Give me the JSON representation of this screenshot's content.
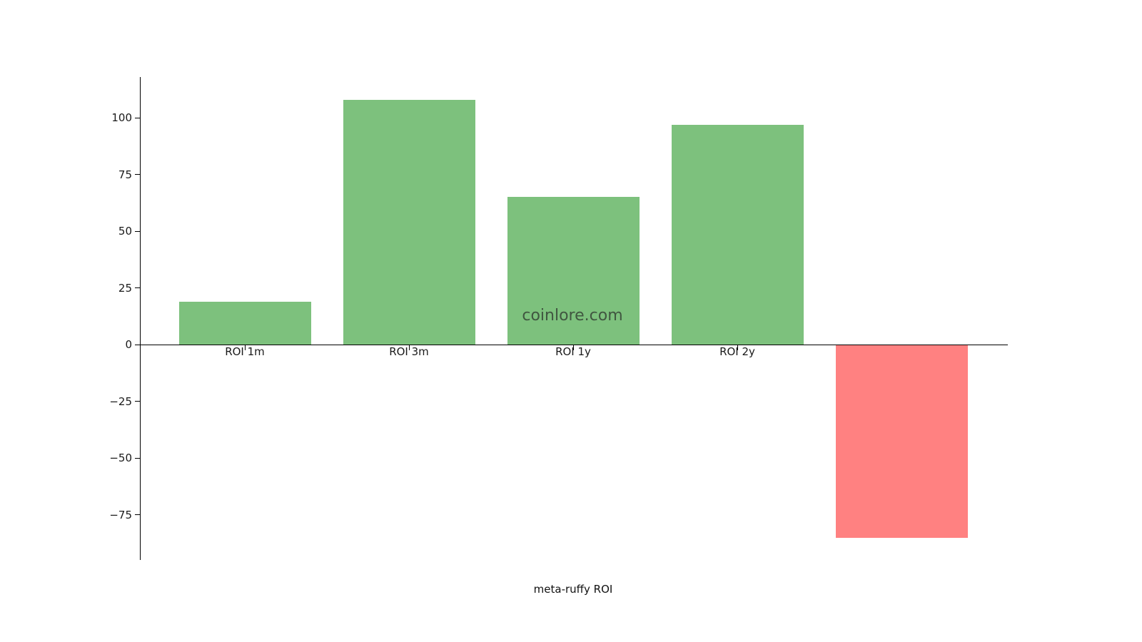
{
  "page": {
    "background_color": "#ffffff"
  },
  "chart_data": {
    "type": "bar",
    "title": "meta-ruffy ROI",
    "watermark": "coinlore.com",
    "categories": [
      "ROI 1m",
      "ROI 3m",
      "ROI 1y",
      "ROI 2y",
      ""
    ],
    "values": [
      19,
      108,
      65,
      97,
      -85
    ],
    "bar_colors": [
      "#7dc17d",
      "#7dc17d",
      "#7dc17d",
      "#7dc17d",
      "#ff8181"
    ],
    "positive_color": "#7dc17d",
    "negative_color": "#ff8181",
    "xlabel": "",
    "ylabel": "",
    "ylim": [
      -95,
      118
    ],
    "yticks": [
      {
        "value": 100,
        "label": "100"
      },
      {
        "value": 75,
        "label": "75"
      },
      {
        "value": 50,
        "label": "50"
      },
      {
        "value": 25,
        "label": "25"
      },
      {
        "value": 0,
        "label": "0"
      },
      {
        "value": -25,
        "label": "−25"
      },
      {
        "value": -50,
        "label": "−50"
      },
      {
        "value": -75,
        "label": "−75"
      }
    ],
    "grid": false,
    "legend": "none"
  }
}
